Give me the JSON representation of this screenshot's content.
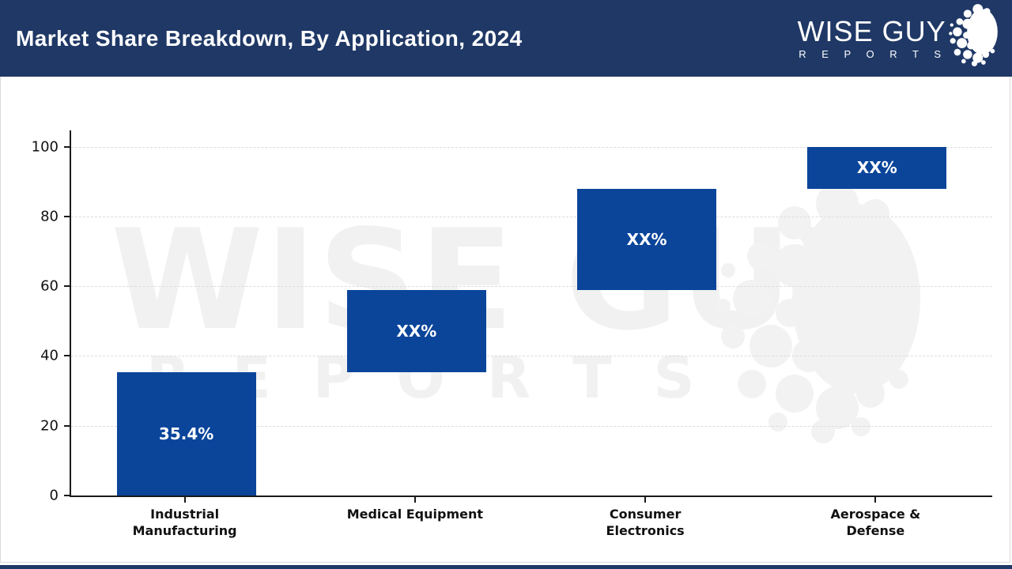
{
  "header": {
    "title": "Market Share Breakdown, By Application, 2024",
    "logo": {
      "wordmark": "WISE GUY",
      "subtitle": "R E P O R T S"
    }
  },
  "watermark": {
    "word": "WISE GUY",
    "subtitle": "R E P O R T S"
  },
  "chart_data": {
    "type": "bar",
    "variant": "waterfall",
    "title": "Market Share Breakdown, By Application, 2024",
    "categories": [
      "Industrial Manufacturing",
      "Medical Equipment",
      "Consumer Electronics",
      "Aerospace & Defense"
    ],
    "category_lines": [
      [
        "Industrial",
        "Manufacturing"
      ],
      [
        "Medical Equipment"
      ],
      [
        "Consumer",
        "Electronics"
      ],
      [
        "Aerospace &",
        "Defense"
      ]
    ],
    "segments": [
      {
        "category": "Industrial Manufacturing",
        "base": 0,
        "top": 35.4,
        "label": "35.4%"
      },
      {
        "category": "Medical Equipment",
        "base": 35.4,
        "top": 59,
        "label": "XX%"
      },
      {
        "category": "Consumer Electronics",
        "base": 59,
        "top": 88,
        "label": "XX%"
      },
      {
        "category": "Aerospace & Defense",
        "base": 88,
        "top": 100,
        "label": "XX%"
      }
    ],
    "xlabel": "",
    "ylabel": "",
    "yticks": [
      0,
      20,
      40,
      60,
      80,
      100
    ],
    "ylim": [
      0,
      104.7
    ],
    "grid": "horizontal-dashed",
    "legend": "none",
    "bar_color": "#0a459a",
    "bar_label_color": "#ffffff"
  },
  "colors": {
    "header_bg": "#1f3866",
    "footer_bar": "#1f3866",
    "bar": "#0a459a",
    "grid": "#dcdcdc",
    "axis": "#1a1a1a",
    "watermark": "#f1f1f1",
    "card_border": "#d9d9d9"
  }
}
